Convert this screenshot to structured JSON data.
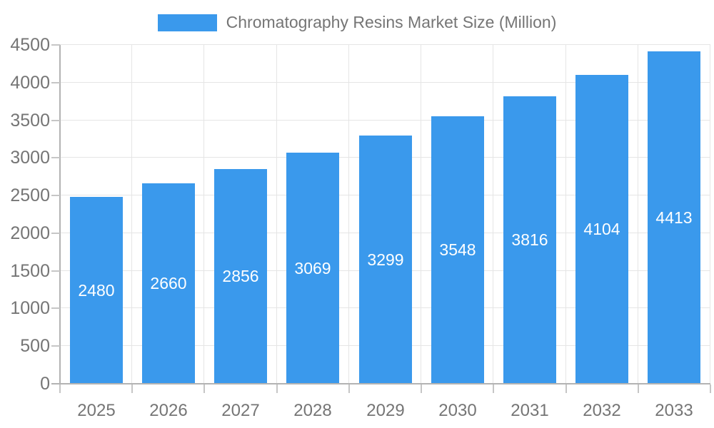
{
  "chart_data": {
    "type": "bar",
    "title": "Chromatography Resins Market Size (Million)",
    "categories": [
      "2025",
      "2026",
      "2027",
      "2028",
      "2029",
      "2030",
      "2031",
      "2032",
      "2033"
    ],
    "values": [
      2480,
      2660,
      2856,
      3069,
      3299,
      3548,
      3816,
      4104,
      4413
    ],
    "series_name": "Chromatography Resins Market Size (Million)",
    "xlabel": "",
    "ylabel": "",
    "ylim": [
      0,
      4500
    ],
    "ytick_step": 500,
    "ytick_labels": [
      "0",
      "500",
      "1000",
      "1500",
      "2000",
      "2500",
      "3000",
      "3500",
      "4000",
      "4500"
    ],
    "grid": true,
    "legend_position": "top-center",
    "colors": {
      "bar": "#3A99EC",
      "bar_label": "#FFFFFF",
      "axis_text": "#757575",
      "axis_line": "#B3B3B3",
      "tick": "#C6C6C6",
      "gridline": "#E5E5E5",
      "background": "#FFFFFF"
    }
  }
}
